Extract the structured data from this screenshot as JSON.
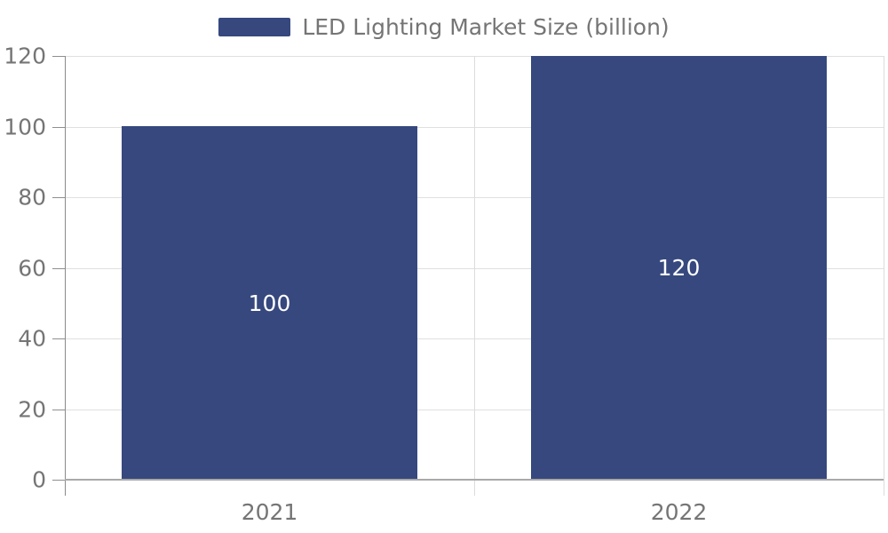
{
  "chart_data": {
    "type": "bar",
    "title": "",
    "categories": [
      "2021",
      "2022"
    ],
    "series": [
      {
        "name": "LED Lighting Market Size (billion)",
        "values": [
          100,
          120
        ]
      }
    ],
    "value_labels": [
      "100",
      "120"
    ],
    "ylim": [
      0,
      120
    ],
    "ytick_step": 20,
    "yticklabels": [
      "0",
      "20",
      "40",
      "60",
      "80",
      "100",
      "120"
    ],
    "grid": true,
    "legend_position": "top-center"
  },
  "legend": {
    "label": "LED Lighting Market Size (billion)",
    "swatch_icon": "bar-series-swatch"
  },
  "colors": {
    "bar": "#36487E",
    "grid_h": "#e0e0e0",
    "grid_v": "#dcdcdc",
    "axis_y": "#8a8a8a",
    "axis_x": "#a9a9a9",
    "tick": "#8f8f8f",
    "text": "#757575",
    "value_label": "#ffffff",
    "background": "#ffffff"
  }
}
